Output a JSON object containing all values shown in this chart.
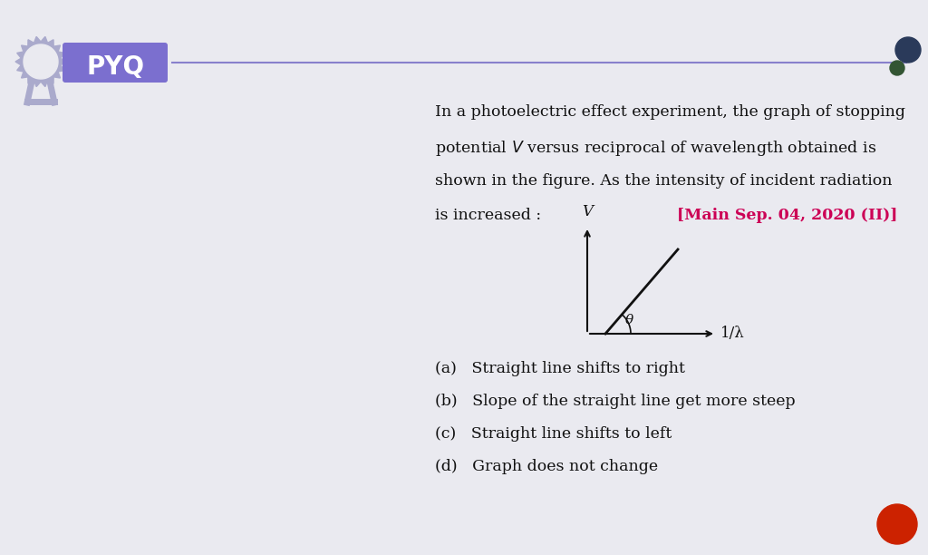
{
  "background_color": "#eaeaf0",
  "header_bar_color": "#7b6fcf",
  "header_text": "PYQ",
  "header_text_color": "#ffffff",
  "header_line_color": "#8880cc",
  "citation_text": "[Main Sep. 04, 2020 (II)]",
  "citation_color": "#cc0055",
  "options": [
    "(a)   Straight line shifts to right",
    "(b)   Slope of the straight line get more steep",
    "(c)   Straight line shifts to left",
    "(d)   Graph does not change"
  ],
  "options_color": "#111111",
  "graph_axis_color": "#111111",
  "graph_line_color": "#111111",
  "graph_v_label": "V",
  "graph_x_label": "1/λ",
  "graph_theta_label": "θ",
  "dot_color": "#cc2200",
  "dot2_color": "#2a3a5a"
}
